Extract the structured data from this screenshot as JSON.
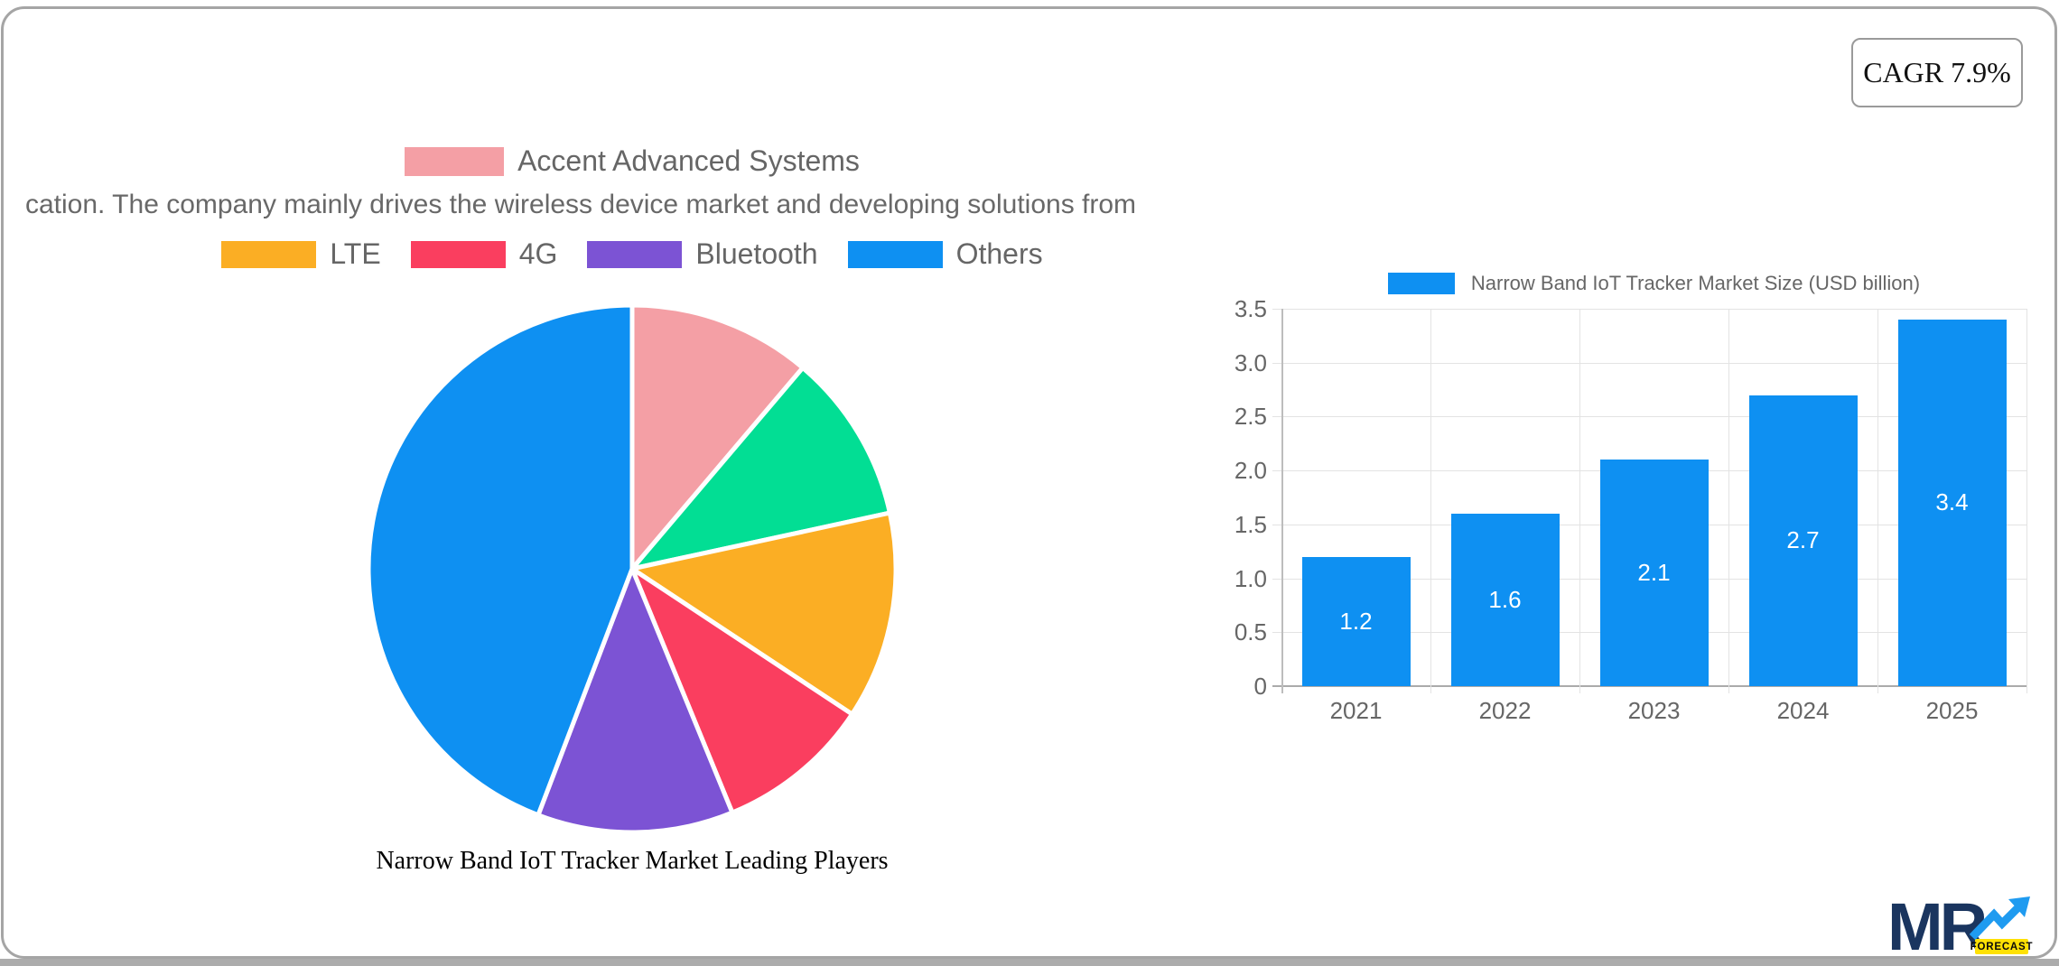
{
  "badge": {
    "label": "CAGR 7.9%"
  },
  "description": {
    "text": "cation. The company mainly drives the wireless device market and developing solutions from"
  },
  "logo": {
    "wordmark": "MR",
    "subtext": "FORECAST"
  },
  "colors": {
    "pink": "#F49FA5",
    "green": "#02DE94",
    "orange": "#FBAE24",
    "red": "#FA3E5F",
    "purple": "#7C53D4",
    "blue": "#0E90F2",
    "text_gray": "#666666",
    "grid_gray": "#E3E3E3",
    "navy": "#1A355F",
    "yellow": "#FFE104"
  },
  "chart_data": [
    {
      "type": "pie",
      "title": "Narrow Band IoT Tracker Market Leading Players",
      "legend_position": "top",
      "start_angle_deg": 0,
      "slices": [
        {
          "label": "Accent Advanced Systems",
          "value": 11.2,
          "color": "#F49FA5"
        },
        {
          "label": "",
          "value": 10.4,
          "color": "#02DE94"
        },
        {
          "label": "LTE",
          "value": 12.7,
          "color": "#FBAE24"
        },
        {
          "label": "4G",
          "value": 9.5,
          "color": "#FA3E5F"
        },
        {
          "label": "Bluetooth",
          "value": 12.0,
          "color": "#7C53D4"
        },
        {
          "label": "Others",
          "value": 44.2,
          "color": "#0E90F2"
        }
      ],
      "legend_rows": [
        {
          "items": [
            {
              "label": "Accent Advanced Systems",
              "color": "#F49FA5"
            }
          ]
        },
        {
          "items": [
            {
              "label": "LTE",
              "color": "#FBAE24"
            },
            {
              "label": "4G",
              "color": "#FA3E5F"
            },
            {
              "label": "Bluetooth",
              "color": "#7C53D4"
            },
            {
              "label": "Others",
              "color": "#0E90F2"
            }
          ]
        }
      ]
    },
    {
      "type": "bar",
      "legend_label": "Narrow Band IoT Tracker Market Size (USD billion)",
      "categories": [
        "2021",
        "2022",
        "2023",
        "2024",
        "2025"
      ],
      "values": [
        1.2,
        1.6,
        2.1,
        2.7,
        3.4
      ],
      "bar_labels": [
        "1.2",
        "1.6",
        "2.1",
        "2.7",
        "3.4"
      ],
      "y_ticks": [
        {
          "label": "3.5",
          "value": 3.5
        },
        {
          "label": "3.0",
          "value": 3.0
        },
        {
          "label": "2.5",
          "value": 2.5
        },
        {
          "label": "2.0",
          "value": 2.0
        },
        {
          "label": "1.5",
          "value": 1.5
        },
        {
          "label": "1.0",
          "value": 1.0
        },
        {
          "label": "0.5",
          "value": 0.5
        },
        {
          "label": "0",
          "value": 0
        }
      ],
      "ylim": [
        0,
        3.5
      ],
      "bar_color": "#0E90F2",
      "grid": true,
      "legend_position": "top"
    }
  ]
}
